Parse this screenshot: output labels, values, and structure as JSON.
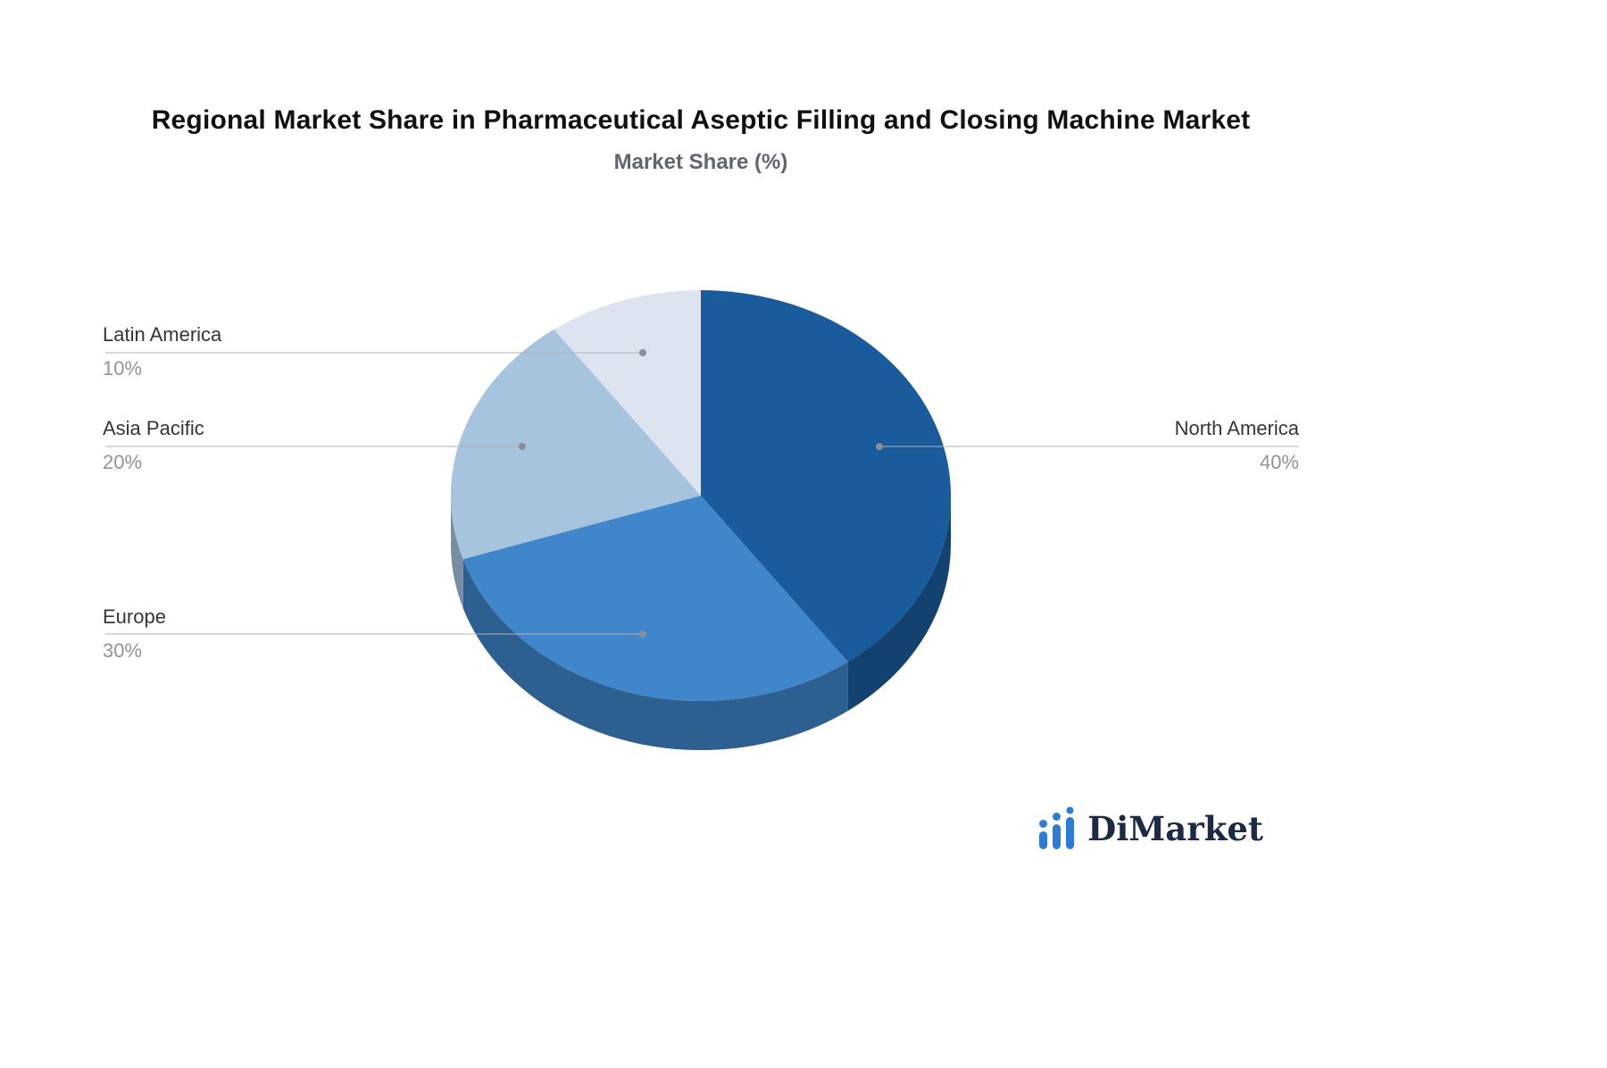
{
  "chart_data": {
    "type": "pie",
    "style": "3d",
    "title": "Regional Market Share in Pharmaceutical Aseptic Filling and Closing Machine Market",
    "subtitle": "Market Share (%)",
    "categories": [
      "North America",
      "Europe",
      "Asia Pacific",
      "Latin America"
    ],
    "values": [
      40,
      30,
      20,
      10
    ],
    "slices": [
      {
        "label": "North America",
        "value": 40,
        "display": "40%",
        "color": "#1a5b9c"
      },
      {
        "label": "Europe",
        "value": 30,
        "display": "30%",
        "color": "#3f86ca"
      },
      {
        "label": "Asia Pacific",
        "value": 20,
        "display": "20%",
        "color": "#a7c4df"
      },
      {
        "label": "Latin America",
        "value": 10,
        "display": "10%",
        "color": "#dde4ef"
      }
    ],
    "legend_position": "callout-labels",
    "label_color": "#333639",
    "value_color": "#8f959c",
    "line_color": "#b3b3b3",
    "dot_color": "#8a8f96"
  },
  "branding": {
    "logo_text": "DiMarket",
    "logo_icon": "bar-chart-dots-icon",
    "logo_icon_color": "#2d7cd4",
    "logo_text_color": "#1c2b45"
  }
}
